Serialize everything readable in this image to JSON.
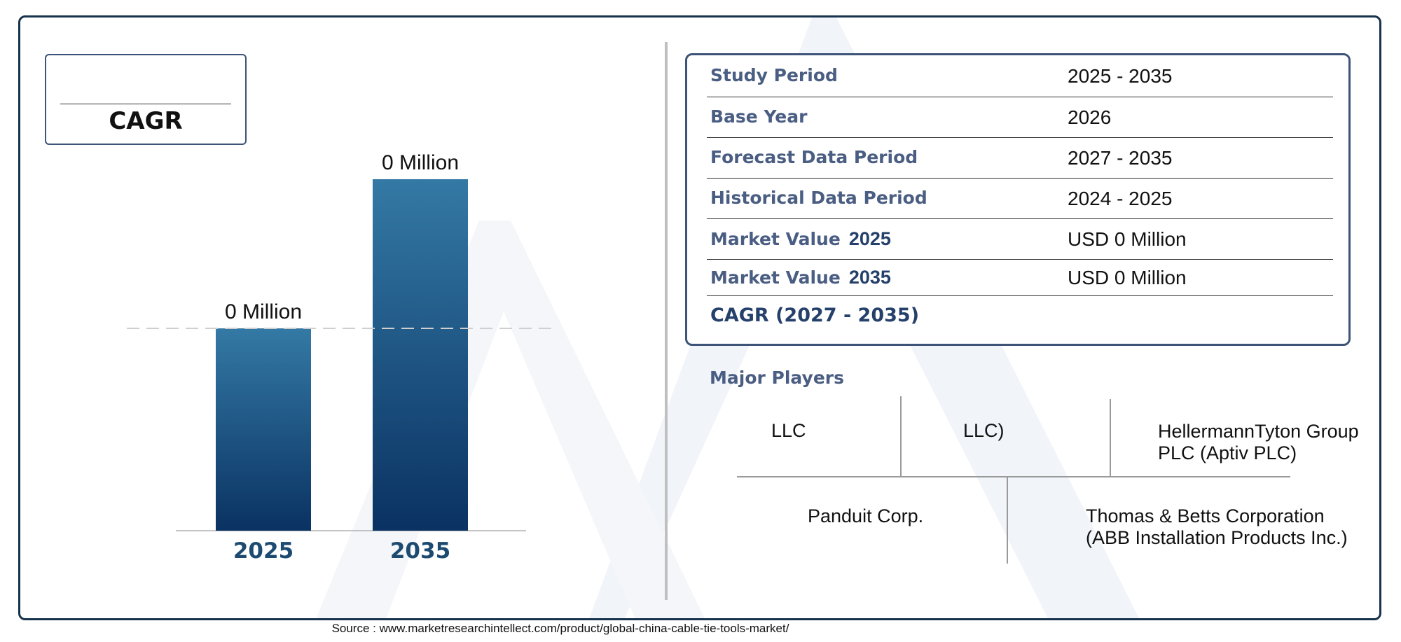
{
  "cagr_box": {
    "label": "CAGR"
  },
  "chart_data": {
    "type": "bar",
    "categories": [
      "2025",
      "2035"
    ],
    "values": [
      0,
      0
    ],
    "data_labels": [
      "0 Million",
      "0 Million"
    ],
    "title": "",
    "xlabel": "",
    "ylabel": "",
    "grid": false,
    "colors": {
      "bar_top": "#3479a5",
      "bar_bottom": "#0a3262",
      "category_text": "#1c4a70",
      "baseline_dash": "#cfcfcf"
    }
  },
  "summary": {
    "rows": [
      {
        "label": "Study Period",
        "year": "",
        "value": "2025 - 2035"
      },
      {
        "label": "Base Year",
        "year": "",
        "value": "2026"
      },
      {
        "label": "Forecast Data Period",
        "year": "",
        "value": "2027 - 2035"
      },
      {
        "label": "Historical Data Period",
        "year": "",
        "value": "2024 - 2025"
      },
      {
        "label": "Market Value",
        "year": "2025",
        "value": "USD 0 Million"
      },
      {
        "label": "Market Value",
        "year": "2035",
        "value": "USD 0 Million"
      }
    ],
    "cagr_label": "CAGR (2027 - 2035)",
    "cagr_value": ""
  },
  "players": {
    "title": "Major Players",
    "items": [
      "LLC",
      "LLC)",
      "HellermannTyton Group PLC (Aptiv PLC)",
      "Panduit Corp.",
      "Thomas & Betts Corporation (ABB Installation Products Inc.)"
    ]
  },
  "source": "Source : www.marketresearchintellect.com/product/global-china-cable-tie-tools-market/",
  "colors": {
    "frame": "#17324d",
    "label_blue": "#4a5d82",
    "dark_blue": "#24406b"
  }
}
